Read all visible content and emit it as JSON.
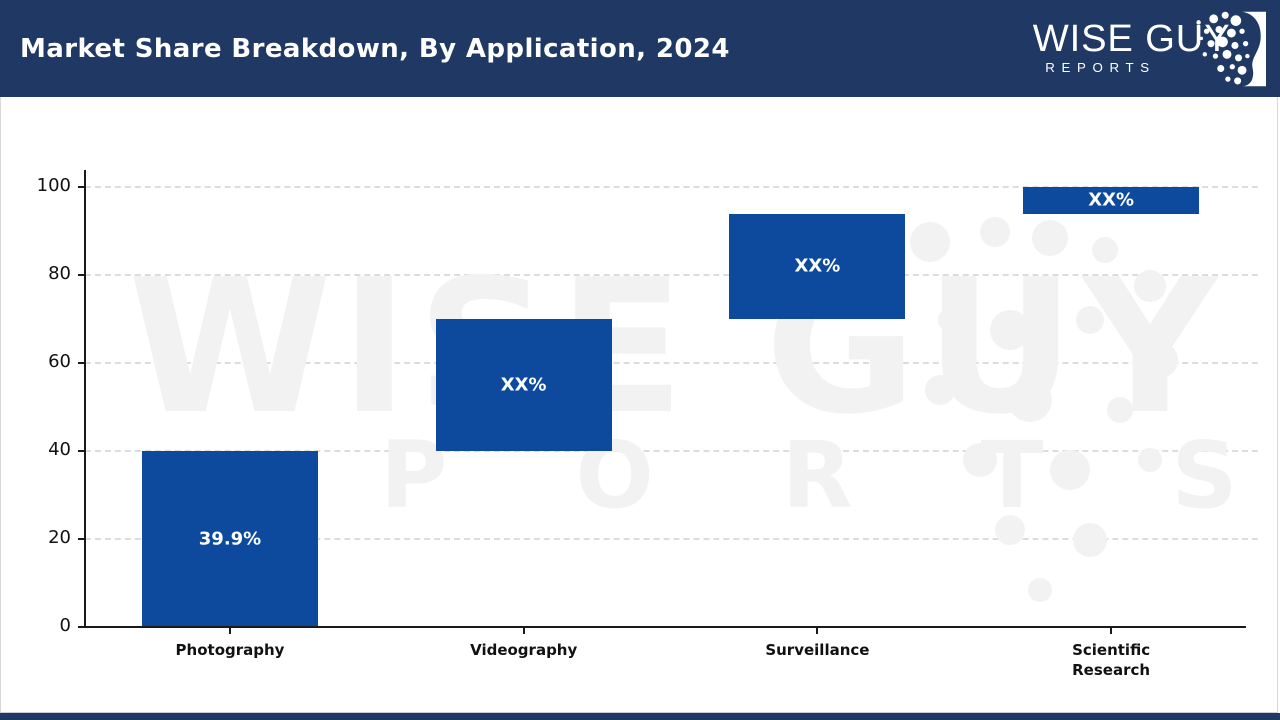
{
  "header": {
    "title": "Market Share Breakdown, By Application, 2024",
    "bg_color": "#1f3864",
    "logo": {
      "line1": "WISE GUY",
      "line2": "R E P O R T S"
    }
  },
  "watermark": {
    "line1": "WISE GUY",
    "line2": "P O R T S"
  },
  "chart_data": {
    "type": "bar",
    "subtype": "waterfall",
    "title": "Market Share Breakdown, By Application, 2024",
    "categories": [
      "Photography",
      "Videography",
      "Surveillance",
      "Scientific Research"
    ],
    "segments": [
      {
        "category": "Photography",
        "start": 0,
        "end": 39.9,
        "label": "39.9%"
      },
      {
        "category": "Videography",
        "start": 39.9,
        "end": 70,
        "label": "XX%"
      },
      {
        "category": "Surveillance",
        "start": 70,
        "end": 93.9,
        "label": "XX%"
      },
      {
        "category": "Scientific Research",
        "start": 93.9,
        "end": 100,
        "label": "XX%"
      }
    ],
    "yticks": [
      0,
      20,
      40,
      60,
      80,
      100
    ],
    "ylim": [
      0,
      104
    ],
    "xlabel": "",
    "ylabel": "",
    "bar_color": "#0d4a9e",
    "label_color": "#ffffff",
    "grid": "horizontal-dashed",
    "legend": "none"
  }
}
